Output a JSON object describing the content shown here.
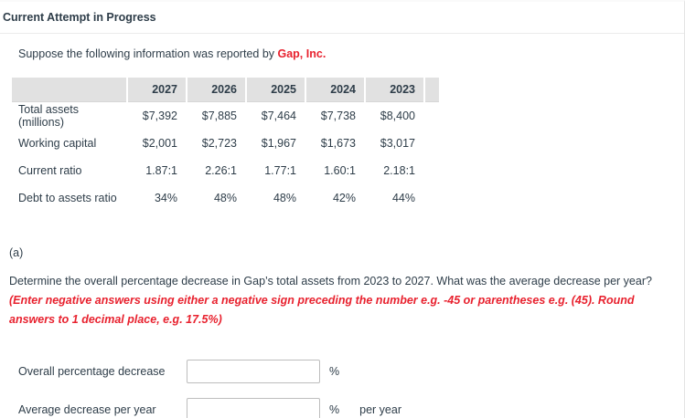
{
  "panel": {
    "title": "Current Attempt in Progress"
  },
  "intro": {
    "text_prefix": "Suppose the following information was reported by ",
    "company": "Gap, Inc."
  },
  "table": {
    "years": [
      "2027",
      "2026",
      "2025",
      "2024",
      "2023"
    ],
    "rows": [
      {
        "label": "Total assets (millions)",
        "values": [
          "$7,392",
          "$7,885",
          "$7,464",
          "$7,738",
          "$8,400"
        ]
      },
      {
        "label": "Working capital",
        "values": [
          "$2,001",
          "$2,723",
          "$1,967",
          "$1,673",
          "$3,017"
        ]
      },
      {
        "label": "Current ratio",
        "values": [
          "1.87:1",
          "2.26:1",
          "1.77:1",
          "1.60:1",
          "2.18:1"
        ]
      },
      {
        "label": "Debt to assets ratio",
        "values": [
          "34%",
          "48%",
          "48%",
          "42%",
          "44%"
        ]
      }
    ]
  },
  "part_a": {
    "label": "(a)",
    "question": "Determine the overall percentage decrease in Gap’s total assets from 2023 to 2027. What was the average decrease per year? ",
    "instructions": "(Enter negative answers using either a negative sign preceding the number e.g. -45 or parentheses e.g. (45). Round answers to 1 decimal place, e.g. 17.5%)"
  },
  "answers": [
    {
      "label": "Overall percentage decrease",
      "value": "",
      "suffix": "%",
      "extra": ""
    },
    {
      "label": "Average decrease per year",
      "value": "",
      "suffix": "%",
      "extra": "per year"
    }
  ],
  "colors": {
    "text": "#2e3d49",
    "accent_red": "#e8212e",
    "table_header_bg": "#e1e1e1",
    "input_border": "#bdbdbd"
  }
}
